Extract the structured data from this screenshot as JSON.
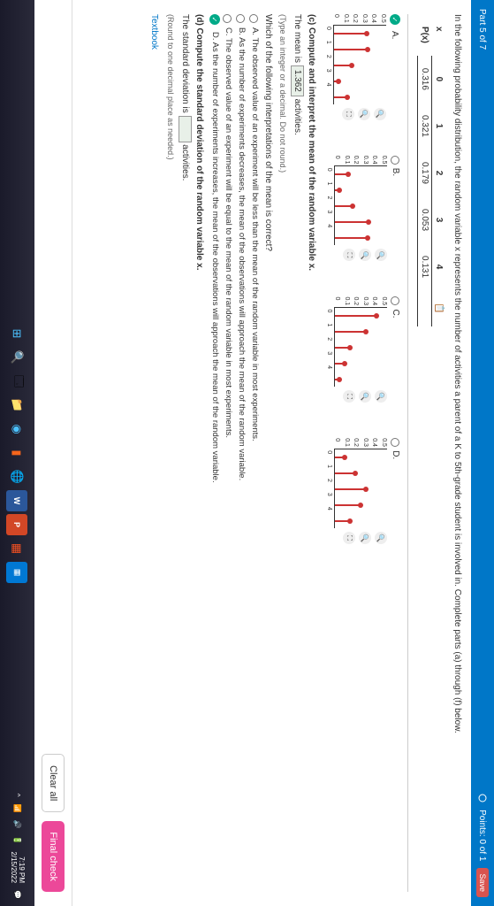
{
  "topbar": {
    "part": "Part 5 of 7",
    "points": "Points: 0 of 1",
    "save": "Save"
  },
  "problem": {
    "text": "In the following probability distribution, the random variable x represents the number of activities a parent of a K to 5th-grade student is involved in. Complete parts (a) through (f) below.",
    "table": {
      "x_label": "x",
      "px_label": "P(x)",
      "x": [
        "0",
        "1",
        "2",
        "3",
        "4"
      ],
      "px": [
        "0.316",
        "0.321",
        "0.179",
        "0.053",
        "0.131"
      ]
    }
  },
  "charts": {
    "options": [
      "A.",
      "B.",
      "C.",
      "D."
    ],
    "correct_index": 0,
    "ylabels": [
      "0",
      "0.1",
      "0.2",
      "0.3",
      "0.4",
      "0.5"
    ],
    "xlabels": [
      "0",
      "1",
      "2",
      "3",
      "4"
    ],
    "data": {
      "A": [
        0.316,
        0.321,
        0.179,
        0.053,
        0.131
      ],
      "B": [
        0.131,
        0.053,
        0.179,
        0.321,
        0.316
      ],
      "C": [
        0.4,
        0.3,
        0.15,
        0.1,
        0.05
      ],
      "D": [
        0.1,
        0.2,
        0.3,
        0.25,
        0.15
      ]
    },
    "bar_color": "#c33"
  },
  "part_c": {
    "label": "(c) Compute and interpret the mean of the random variable x.",
    "mean_text_pre": "The mean is",
    "mean_value": "1.362",
    "mean_text_post": "activities.",
    "hint": "(Type an integer or a decimal. Do not round.)",
    "question": "Which of the following interpretations of the mean is correct?",
    "opts": [
      {
        "id": "A",
        "text": "The observed value of an experiment will be less than the mean of the random variable in most experiments."
      },
      {
        "id": "B",
        "text": "As the number of experiments decreases, the mean of the observations will approach the mean of the random variable."
      },
      {
        "id": "C",
        "text": "The observed value of an experiment will be equal to the mean of the random variable in most experiments."
      },
      {
        "id": "D",
        "text": "As the number of experiments increases, the mean of the observations will approach the mean of the random variable."
      }
    ],
    "correct_index": 3
  },
  "part_d": {
    "label": "(d) Compute the standard deviation of the random variable x.",
    "sd_pre": "The standard deviation is",
    "sd_post": "activities.",
    "hint": "(Round to one decimal place as needed.)"
  },
  "textbook": "Textbook",
  "buttons": {
    "clear": "Clear all",
    "final": "Final check"
  },
  "taskbar": {
    "time": "7:19 PM",
    "date": "2/15/2022"
  }
}
